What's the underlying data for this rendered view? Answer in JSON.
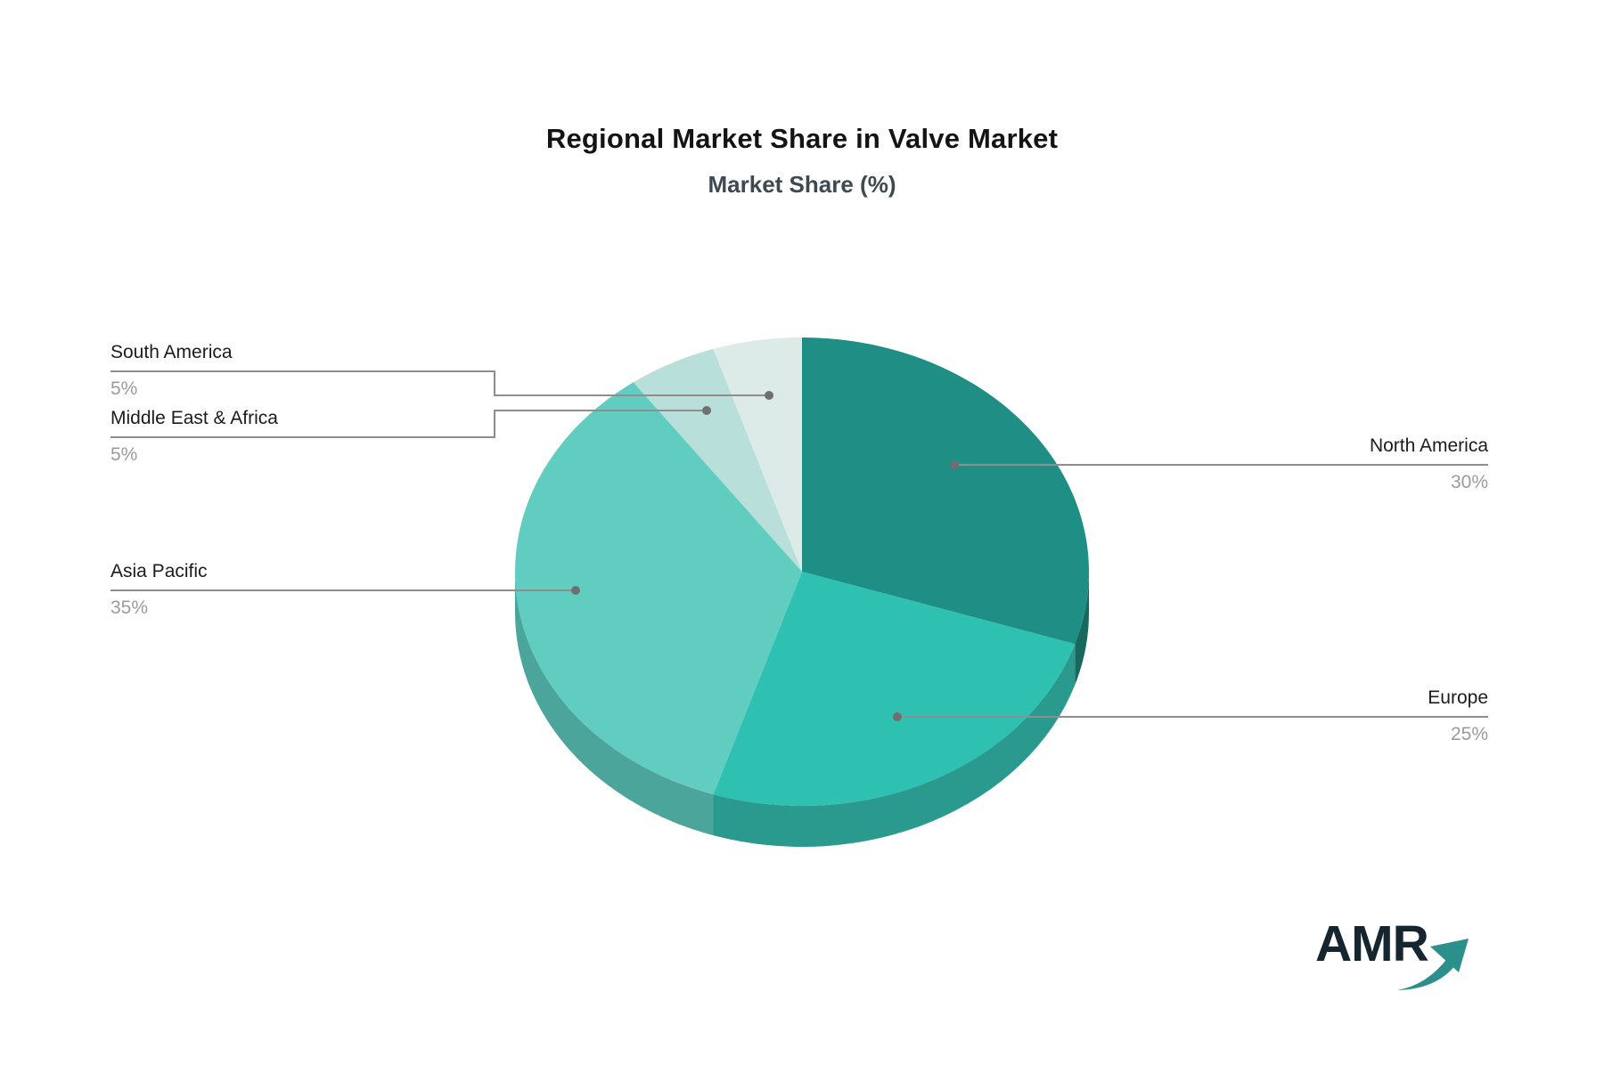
{
  "title": "Regional Market Share in Valve Market",
  "subtitle": "Market Share (%)",
  "logo": {
    "text": "AMR"
  },
  "chart_data": {
    "type": "pie",
    "title": "Regional Market Share in Valve Market",
    "subtitle": "Market Share (%)",
    "unit": "%",
    "style": "3d-pie",
    "direction": "clockwise",
    "start_angle_deg": 0,
    "legend_position": "none",
    "label_style": "callout-lines-with-dots",
    "slices": [
      {
        "label": "North America",
        "value": 30,
        "display": "30%",
        "color": "#1f8e85",
        "side_color": "#17685f"
      },
      {
        "label": "Europe",
        "value": 25,
        "display": "25%",
        "color": "#2ec0b1",
        "side_color": "#2b9a8e"
      },
      {
        "label": "Asia Pacific",
        "value": 35,
        "display": "35%",
        "color": "#61cdc1",
        "side_color": "#4ba59a"
      },
      {
        "label": "Middle East & Africa",
        "value": 5,
        "display": "5%",
        "color": "#b8dfda",
        "side_color": "#93b8b3"
      },
      {
        "label": "South America",
        "value": 5,
        "display": "5%",
        "color": "#dcebe8",
        "side_color": "#b2c2bf"
      }
    ],
    "colors": {
      "connector_line": "#8e8e8e",
      "connector_dot": "#6f6f6f",
      "label_text": "#1c1c1c",
      "percent_text": "#9b9b9b",
      "logo_teal": "#2d8f8b",
      "logo_dark": "#15262e"
    }
  }
}
